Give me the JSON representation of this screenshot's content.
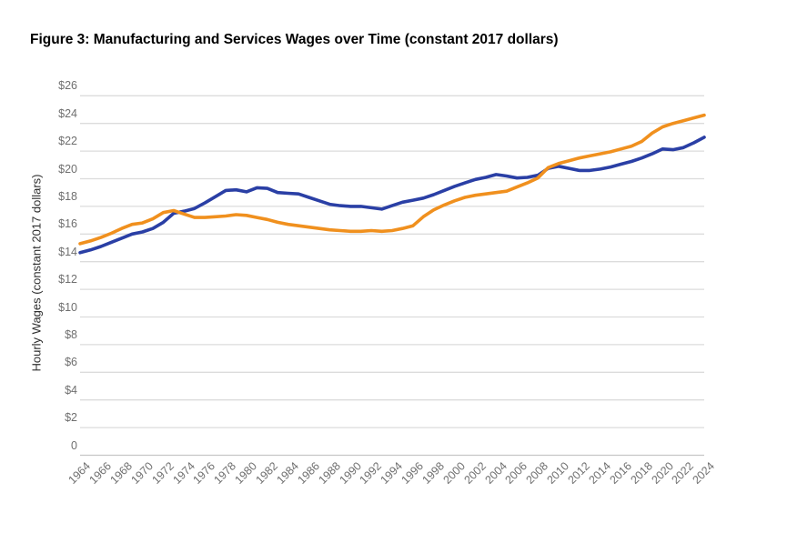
{
  "figure": {
    "title": "Figure 3: Manufacturing and Services Wages over Time (constant 2017 dollars)",
    "y_axis_title": "Hourly Wages (constant 2017 dollars)"
  },
  "colors": {
    "background": "#ffffff",
    "gridline": "#dcdcdc",
    "baseline": "#c6c6c6",
    "tick_label": "#6f6f6f",
    "title": "#000000",
    "series_blue": "#2a3fa5",
    "series_orange": "#f0901e"
  },
  "chart_data": {
    "type": "line",
    "title": "Figure 3: Manufacturing and Services Wages over Time (constant 2017 dollars)",
    "xlabel": "",
    "ylabel": "Hourly Wages (constant 2017 dollars)",
    "ylim": [
      0,
      26
    ],
    "grid": "horizontal",
    "legend_position": "none",
    "y_ticks": [
      26,
      24,
      22,
      20,
      18,
      16,
      14,
      12,
      10,
      8,
      6,
      4,
      2,
      0
    ],
    "y_tick_labels": [
      "$26",
      "$24",
      "$22",
      "$20",
      "$18",
      "$16",
      "$14",
      "$12",
      "$10",
      "$8",
      "$6",
      "$4",
      "$2",
      "0"
    ],
    "x_tick_years": [
      1964,
      1966,
      1968,
      1970,
      1972,
      1974,
      1976,
      1978,
      1980,
      1982,
      1984,
      1986,
      1988,
      1990,
      1992,
      1994,
      1996,
      1998,
      2000,
      2002,
      2004,
      2006,
      2008,
      2010,
      2012,
      2014,
      2016,
      2018,
      2020,
      2022,
      2024
    ],
    "x_tick_labels": [
      "1964",
      "1966",
      "1968",
      "1970",
      "1972",
      "1974",
      "1976",
      "1978",
      "1980",
      "1982",
      "1984",
      "1986",
      "1988",
      "1990",
      "1992",
      "1994",
      "1996",
      "1998",
      "2000",
      "2002",
      "2004",
      "2006",
      "2008",
      "2010",
      "2012",
      "2014",
      "2016",
      "2018",
      "2020",
      "2022",
      "2024"
    ],
    "x": [
      1964,
      1965,
      1966,
      1967,
      1968,
      1969,
      1970,
      1971,
      1972,
      1973,
      1974,
      1975,
      1976,
      1977,
      1978,
      1979,
      1980,
      1981,
      1982,
      1983,
      1984,
      1985,
      1986,
      1987,
      1988,
      1989,
      1990,
      1991,
      1992,
      1993,
      1994,
      1995,
      1996,
      1997,
      1998,
      1999,
      2000,
      2001,
      2002,
      2003,
      2004,
      2005,
      2006,
      2007,
      2008,
      2009,
      2010,
      2011,
      2012,
      2013,
      2014,
      2015,
      2016,
      2017,
      2018,
      2019,
      2020,
      2021,
      2022,
      2023,
      2024
    ],
    "series": [
      {
        "name": "blue",
        "color": "#2a3fa5",
        "values": [
          14.65,
          14.85,
          15.1,
          15.4,
          15.7,
          16.0,
          16.15,
          16.4,
          16.85,
          17.5,
          17.65,
          17.85,
          18.25,
          18.7,
          19.15,
          19.2,
          19.05,
          19.35,
          19.3,
          19.0,
          18.95,
          18.9,
          18.65,
          18.4,
          18.15,
          18.05,
          18.0,
          18.0,
          17.9,
          17.8,
          18.05,
          18.3,
          18.45,
          18.6,
          18.85,
          19.15,
          19.45,
          19.7,
          19.95,
          20.1,
          20.3,
          20.2,
          20.05,
          20.1,
          20.25,
          20.75,
          20.9,
          20.75,
          20.6,
          20.6,
          20.7,
          20.85,
          21.05,
          21.25,
          21.5,
          21.8,
          22.15,
          22.1,
          22.25,
          22.6,
          23.0
        ]
      },
      {
        "name": "orange",
        "color": "#f0901e",
        "values": [
          15.3,
          15.5,
          15.75,
          16.05,
          16.4,
          16.7,
          16.8,
          17.1,
          17.55,
          17.7,
          17.45,
          17.2,
          17.2,
          17.25,
          17.3,
          17.4,
          17.35,
          17.2,
          17.05,
          16.85,
          16.7,
          16.6,
          16.5,
          16.4,
          16.3,
          16.25,
          16.2,
          16.2,
          16.25,
          16.2,
          16.25,
          16.4,
          16.6,
          17.25,
          17.75,
          18.1,
          18.4,
          18.65,
          18.8,
          18.9,
          19.0,
          19.1,
          19.4,
          19.7,
          20.05,
          20.8,
          21.1,
          21.3,
          21.5,
          21.65,
          21.8,
          21.95,
          22.15,
          22.35,
          22.7,
          23.3,
          23.75,
          24.0,
          24.2,
          24.4,
          24.6
        ]
      }
    ]
  }
}
